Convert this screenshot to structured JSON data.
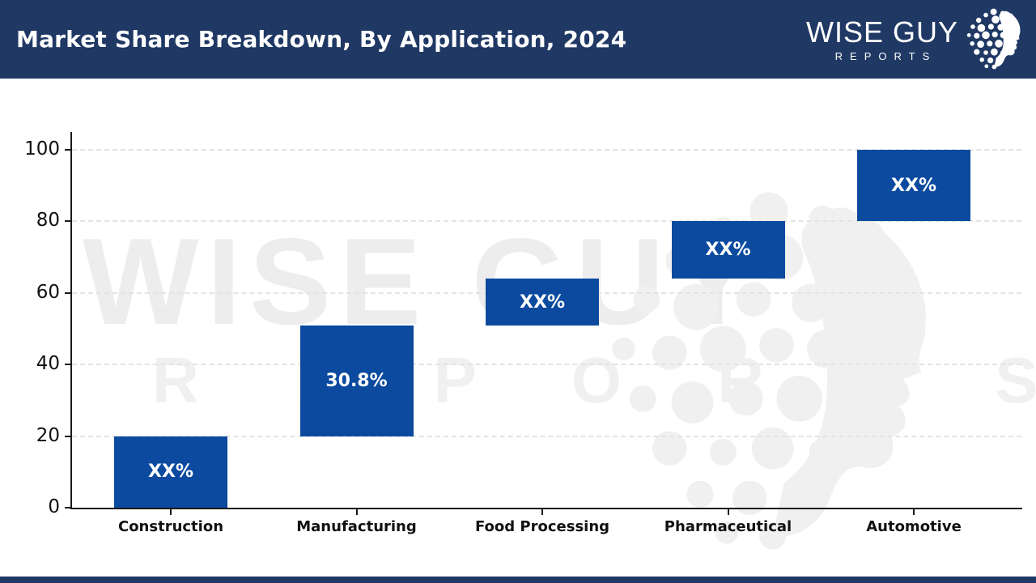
{
  "header": {
    "title": "Market Share Breakdown, By Application, 2024",
    "logo": {
      "line1": "WISE GUY",
      "line2": "REPORTS"
    }
  },
  "watermark": {
    "line1": "WISE GUY",
    "line2": "R E P O R T S"
  },
  "colors": {
    "header_bg": "#1F3864",
    "footer_bg": "#1F3864",
    "bar": "#0B4A9F",
    "bar_label_text": "#FFFFFF",
    "gridline": "#E3E3E3",
    "axis": "#1A1A1A",
    "watermark": "#EFEFEF"
  },
  "chart_data": {
    "type": "bar",
    "subtype": "waterfall",
    "title": "Market Share Breakdown, By Application, 2024",
    "xlabel": "",
    "ylabel": "",
    "categories": [
      "Construction",
      "Manufacturing",
      "Food Processing",
      "Pharmaceutical",
      "Automotive"
    ],
    "segments": [
      {
        "category": "Construction",
        "start": 0,
        "end": 20,
        "value": 20,
        "label": "XX%"
      },
      {
        "category": "Manufacturing",
        "start": 20,
        "end": 50.8,
        "value": 30.8,
        "label": "30.8%"
      },
      {
        "category": "Food Processing",
        "start": 50.8,
        "end": 64,
        "value": 13.2,
        "label": "XX%"
      },
      {
        "category": "Pharmaceutical",
        "start": 64,
        "end": 80,
        "value": 16,
        "label": "XX%"
      },
      {
        "category": "Automotive",
        "start": 80,
        "end": 100,
        "value": 20,
        "label": "XX%"
      }
    ],
    "y_ticks": [
      0,
      20,
      40,
      60,
      80,
      100
    ],
    "ylim": [
      0,
      105
    ],
    "grid": "horizontal dashed",
    "legend": "none"
  }
}
